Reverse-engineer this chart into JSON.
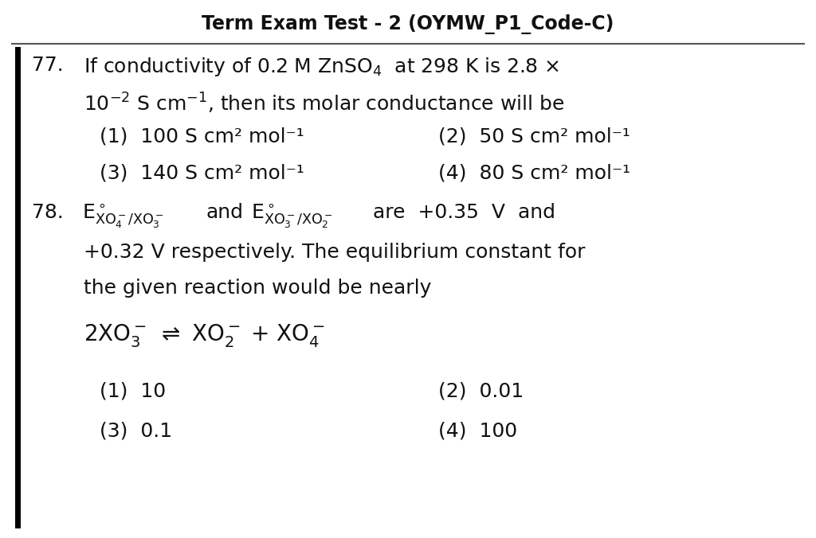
{
  "title": "Term Exam Test - 2 (OYMW_P1_Code-C)",
  "background_color": "#ffffff",
  "text_color": "#111111",
  "title_fontsize": 17,
  "body_fontsize": 18,
  "figsize": [
    10.24,
    6.76
  ],
  "dpi": 100,
  "q77_line1": "If conductivity of 0.2 M ZnSO$_4$  at 298 K is 2.8 ×",
  "q77_line2": "10$^{-2}$ S cm$^{-1}$, then its molar conductance will be",
  "q77_opt1": "(1)  100 S cm² mol⁻¹",
  "q77_opt2": "(2)  50 S cm² mol⁻¹",
  "q77_opt3": "(3)  140 S cm² mol⁻¹",
  "q77_opt4": "(4)  80 S cm² mol⁻¹",
  "q78_line2": "+0.32 V respectively. The equilibrium constant for",
  "q78_line3": "the given reaction would be nearly",
  "q78_opt1": "(1)  10",
  "q78_opt2": "(2)  0.01",
  "q78_opt3": "(3)  0.1",
  "q78_opt4": "(4)  100"
}
